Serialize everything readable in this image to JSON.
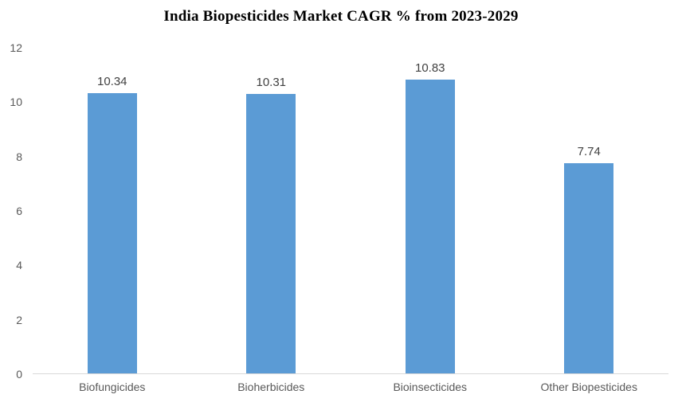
{
  "chart_data": {
    "type": "bar",
    "title": "India Biopesticides Market CAGR % from 2023-2029",
    "categories": [
      "Biofungicides",
      "Bioherbicides",
      "Bioinsecticides",
      "Other Biopesticides"
    ],
    "values": [
      10.34,
      10.31,
      10.83,
      7.74
    ],
    "data_labels": [
      "10.34",
      "10.31",
      "10.83",
      "7.74"
    ],
    "xlabel": "",
    "ylabel": "",
    "ylim": [
      0,
      12
    ],
    "yticks": [
      0,
      2,
      4,
      6,
      8,
      10,
      12
    ],
    "grid": false,
    "legend": false,
    "colors": {
      "bar_fill": "#5b9bd5",
      "axis_line": "#d9d9d9",
      "tick_label": "#595959",
      "data_label": "#404040",
      "title": "#000000"
    }
  }
}
